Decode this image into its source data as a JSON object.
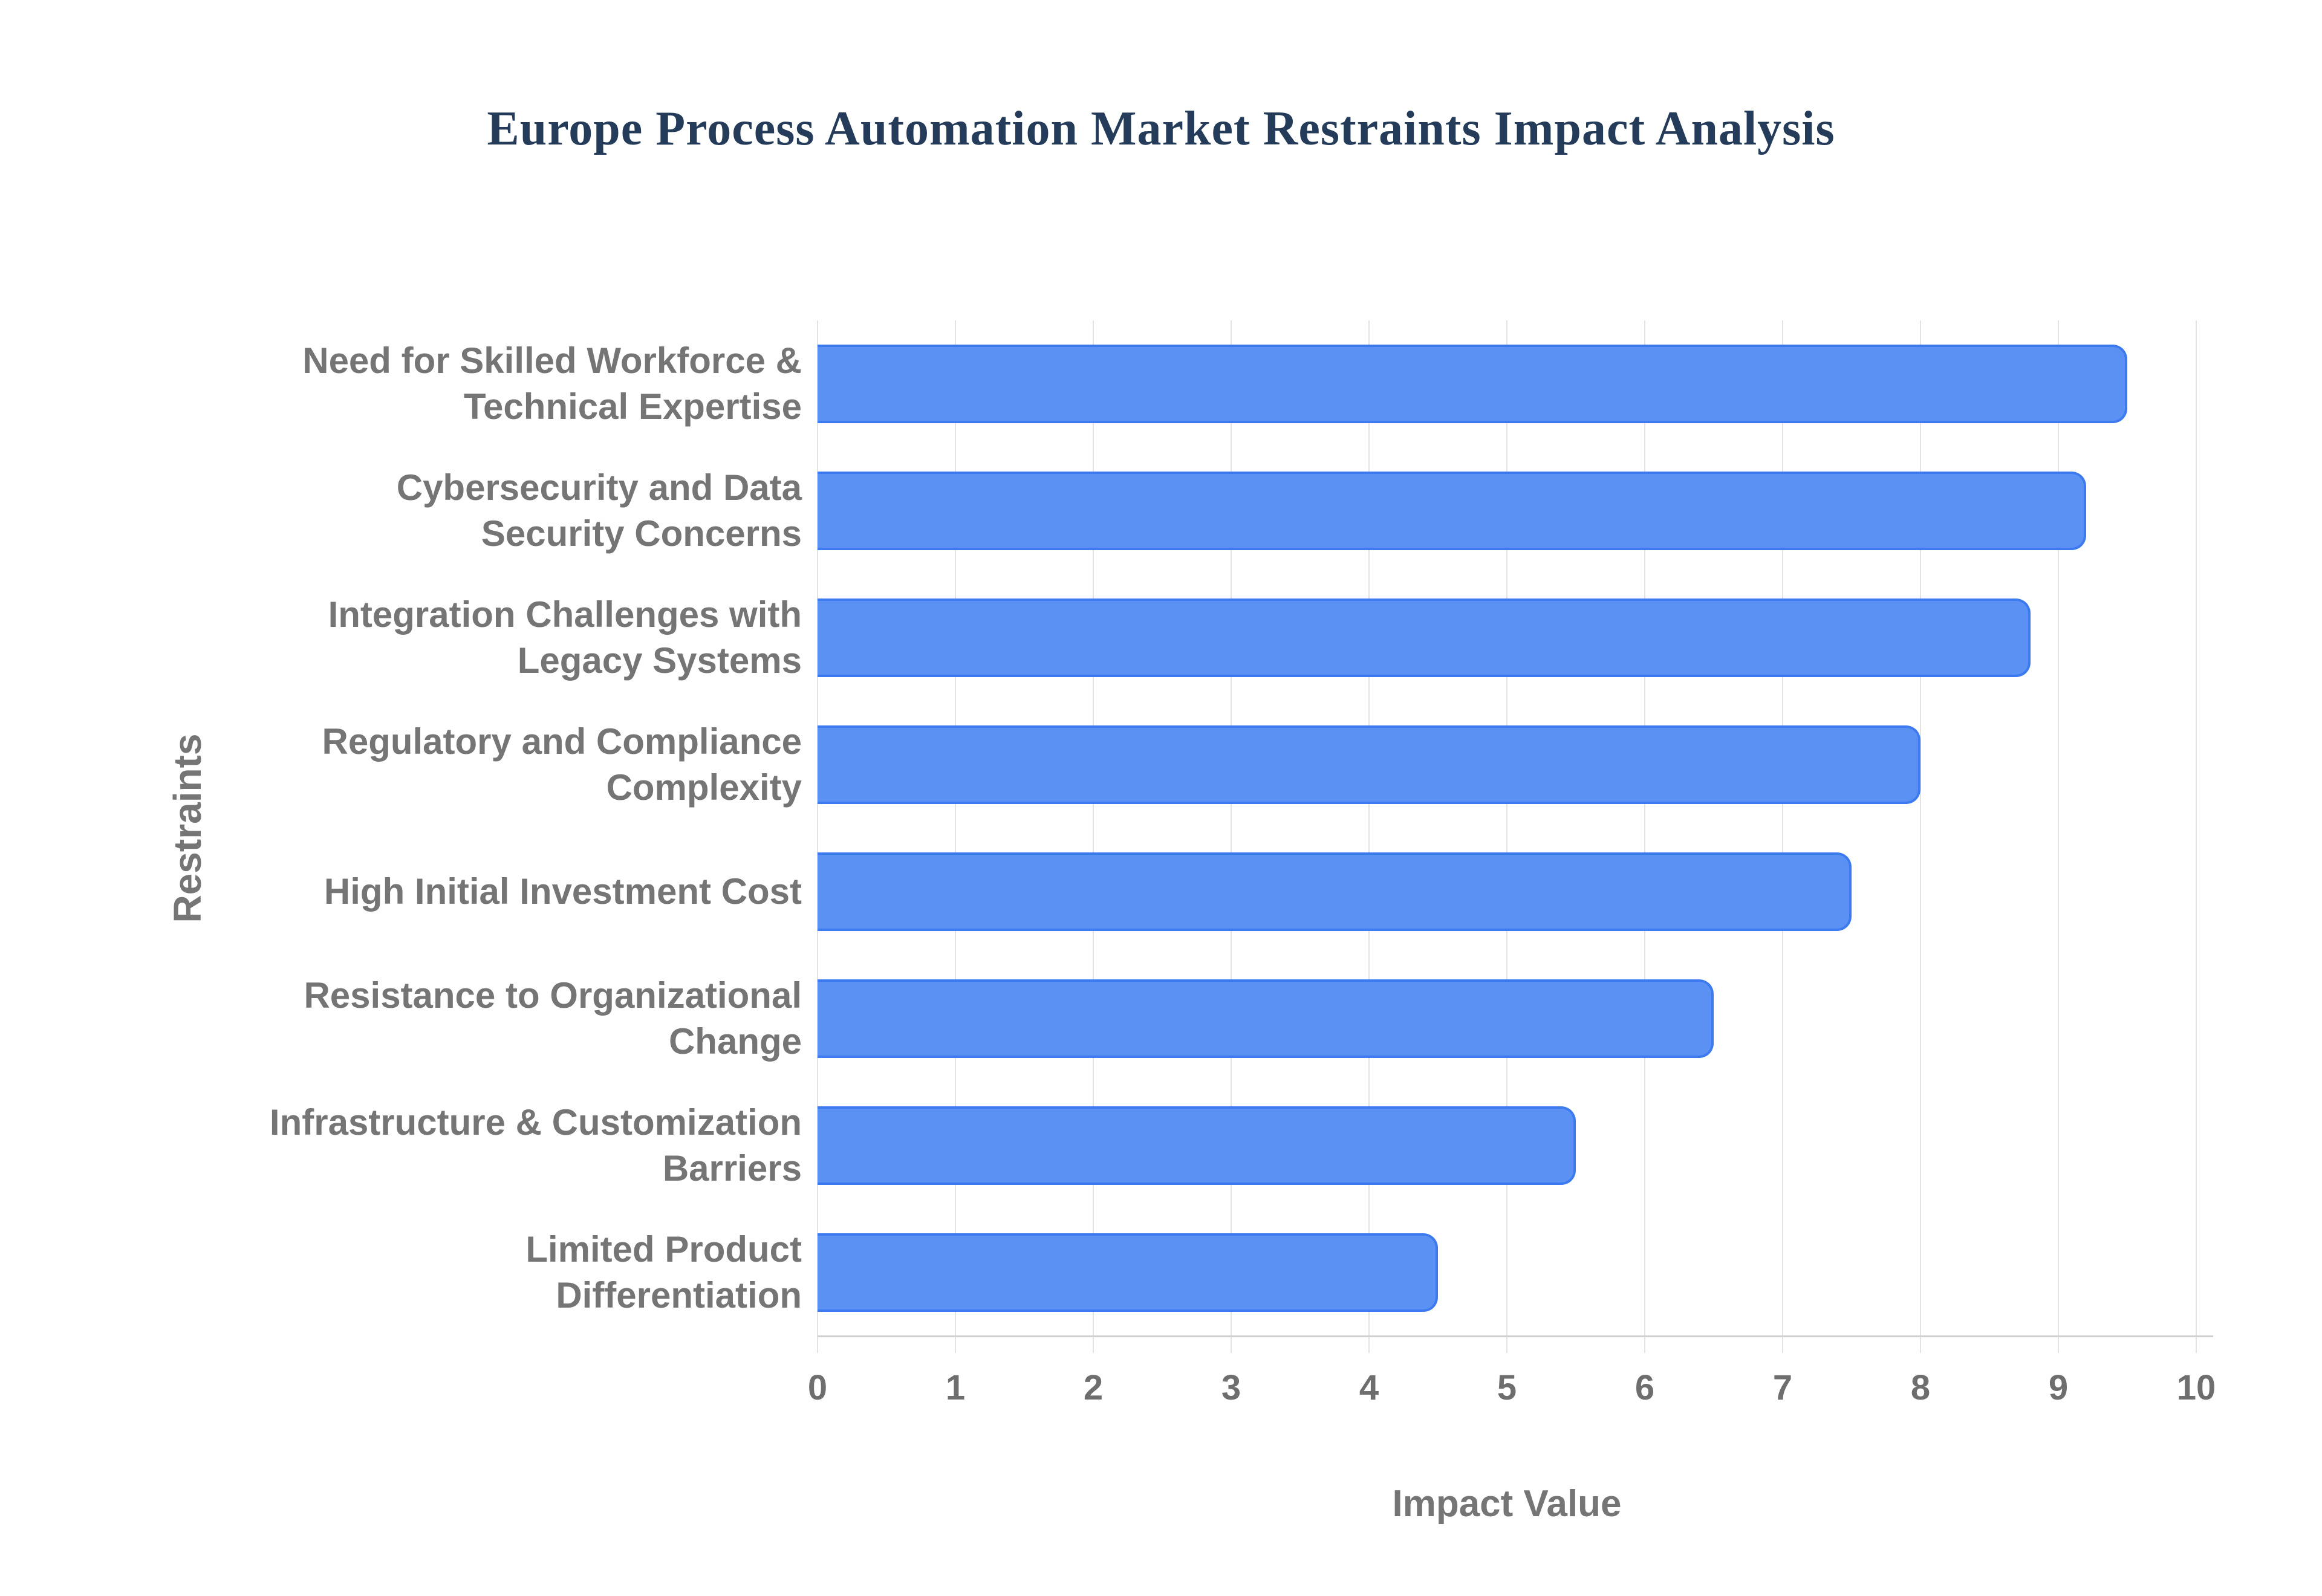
{
  "chart_data": {
    "type": "bar",
    "orientation": "horizontal",
    "title": "Europe Process Automation Market Restraints Impact Analysis",
    "xlabel": "Impact Value",
    "ylabel": "Restraints",
    "categories": [
      "Need for Skilled Workforce & Technical Expertise",
      "Cybersecurity and Data Security Concerns",
      "Integration Challenges with Legacy Systems",
      "Regulatory and Compliance Complexity",
      "High Initial Investment Cost",
      "Resistance to Organizational Change",
      "Infrastructure & Customization Barriers",
      "Limited Product Differentiation"
    ],
    "category_lines": [
      [
        "Need for Skilled Workforce &",
        "Technical Expertise"
      ],
      [
        "Cybersecurity and Data",
        "Security Concerns"
      ],
      [
        "Integration Challenges with",
        "Legacy Systems"
      ],
      [
        "Regulatory and Compliance",
        "Complexity"
      ],
      [
        "High Initial Investment Cost"
      ],
      [
        "Resistance to Organizational",
        "Change"
      ],
      [
        "Infrastructure & Customization",
        "Barriers"
      ],
      [
        "Limited Product",
        "Differentiation"
      ]
    ],
    "values": [
      9.5,
      9.2,
      8.8,
      8.0,
      7.5,
      6.5,
      5.5,
      4.5
    ],
    "xlim": [
      0,
      10
    ],
    "xticks": [
      0,
      1,
      2,
      3,
      4,
      5,
      6,
      7,
      8,
      9,
      10
    ],
    "grid": "vertical",
    "legend": "none",
    "colors": {
      "bar_fill": "#5b91f2",
      "bar_border": "#3d7af0",
      "title": "#243b59",
      "labels": "#757575",
      "tick_labels": "#6e6e6e",
      "gridline": "#e3e3e3",
      "axis_line": "#cfcfcf",
      "background": "#ffffff"
    }
  }
}
